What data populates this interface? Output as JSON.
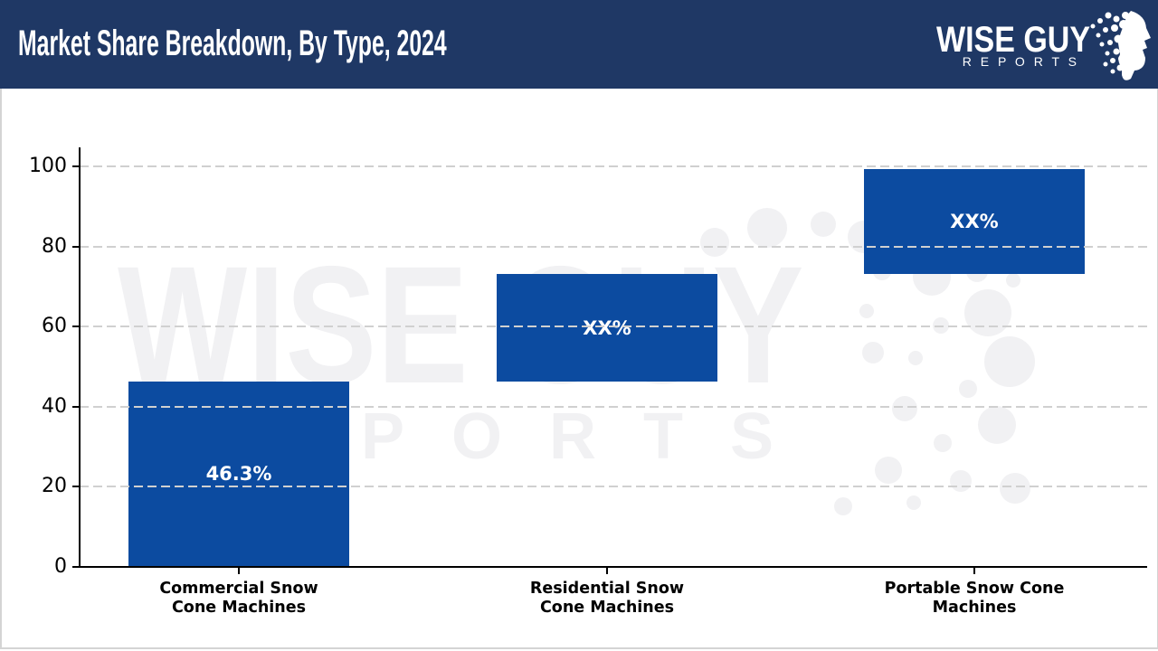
{
  "header": {
    "title": "Market Share Breakdown, By Type, 2024",
    "logo": {
      "line1": "WISE GUY",
      "line2": "R E P O R T S"
    }
  },
  "watermark": {
    "line1": "WISE GUY",
    "line2": "REPORTS"
  },
  "chart_data": {
    "type": "bar",
    "subtype": "waterfall",
    "title": "Market Share Breakdown, By Type, 2024",
    "categories": [
      [
        "Commercial Snow",
        "Cone Machines"
      ],
      [
        "Residential Snow",
        "Cone Machines"
      ],
      [
        "Portable Snow Cone",
        "Machines"
      ]
    ],
    "bars": [
      {
        "label": "46.3%",
        "start": 0,
        "end": 46.3
      },
      {
        "label": "XX%",
        "start": 46.3,
        "end": 73.1
      },
      {
        "label": "XX%",
        "start": 73.1,
        "end": 99.4
      }
    ],
    "yticks": [
      0,
      20,
      40,
      60,
      80,
      100
    ],
    "ylim": [
      0,
      104.8
    ],
    "grid": "dashed-horizontal-over-bars",
    "legend": "none",
    "xlabel": "",
    "ylabel": "",
    "bar_color": "#0c4ba0",
    "bar_label_color": "#ffffff"
  },
  "colors": {
    "header_bg": "#1f3865",
    "bar": "#0c4ba0",
    "grid": "#d0d0d0",
    "axis": "#000000",
    "watermark": "#f1f1f3"
  }
}
